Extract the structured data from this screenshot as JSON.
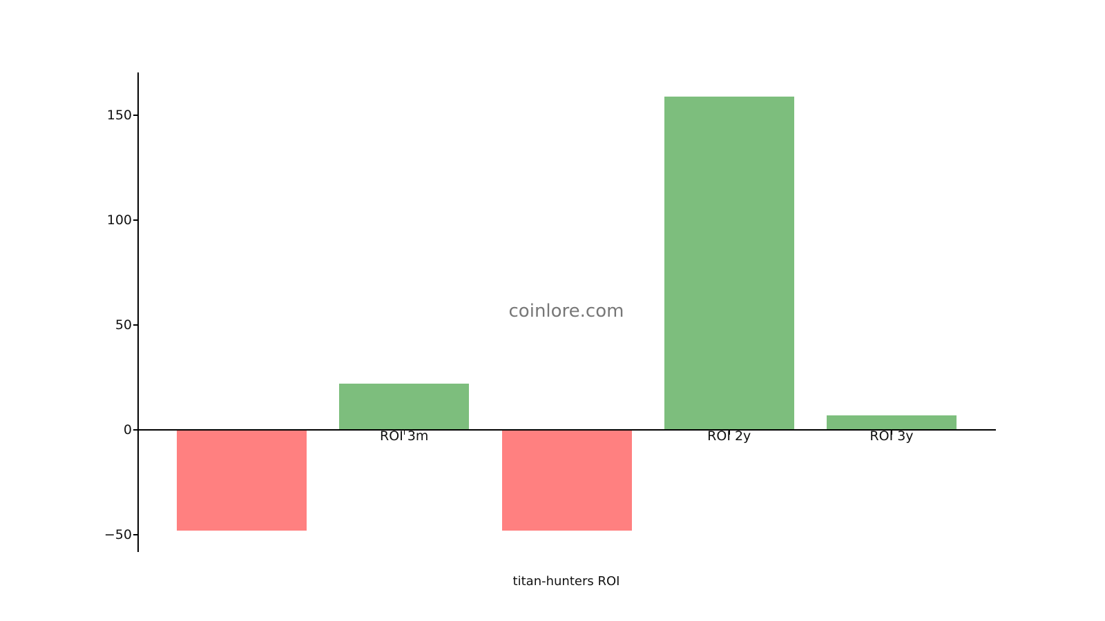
{
  "watermark": {
    "text": "coinlore.com",
    "color": "#777777"
  },
  "chart_data": {
    "type": "bar",
    "title": "titan-hunters ROI",
    "xlabel": "titan-hunters ROI",
    "ylabel": "",
    "categories": [
      "",
      "ROI 3m",
      "",
      "ROI 2y",
      "ROI 3y"
    ],
    "values": [
      -48,
      22,
      -48,
      159,
      7
    ],
    "bar_colors": [
      "#FF8080",
      "#7DBE7D",
      "#FF8080",
      "#7DBE7D",
      "#7DBE7D"
    ],
    "positive_color": "#7DBE7D",
    "negative_color": "#FF8080",
    "yticks": [
      {
        "value": -50,
        "label": "−50"
      },
      {
        "value": 0,
        "label": "0"
      },
      {
        "value": 50,
        "label": "50"
      },
      {
        "value": 100,
        "label": "100"
      },
      {
        "value": 150,
        "label": "150"
      }
    ],
    "ylim": [
      -58,
      170
    ],
    "grid": false,
    "legend": false,
    "watermark": "coinlore.com",
    "axis_color": "#000000",
    "tick_label_color": "#111111"
  }
}
